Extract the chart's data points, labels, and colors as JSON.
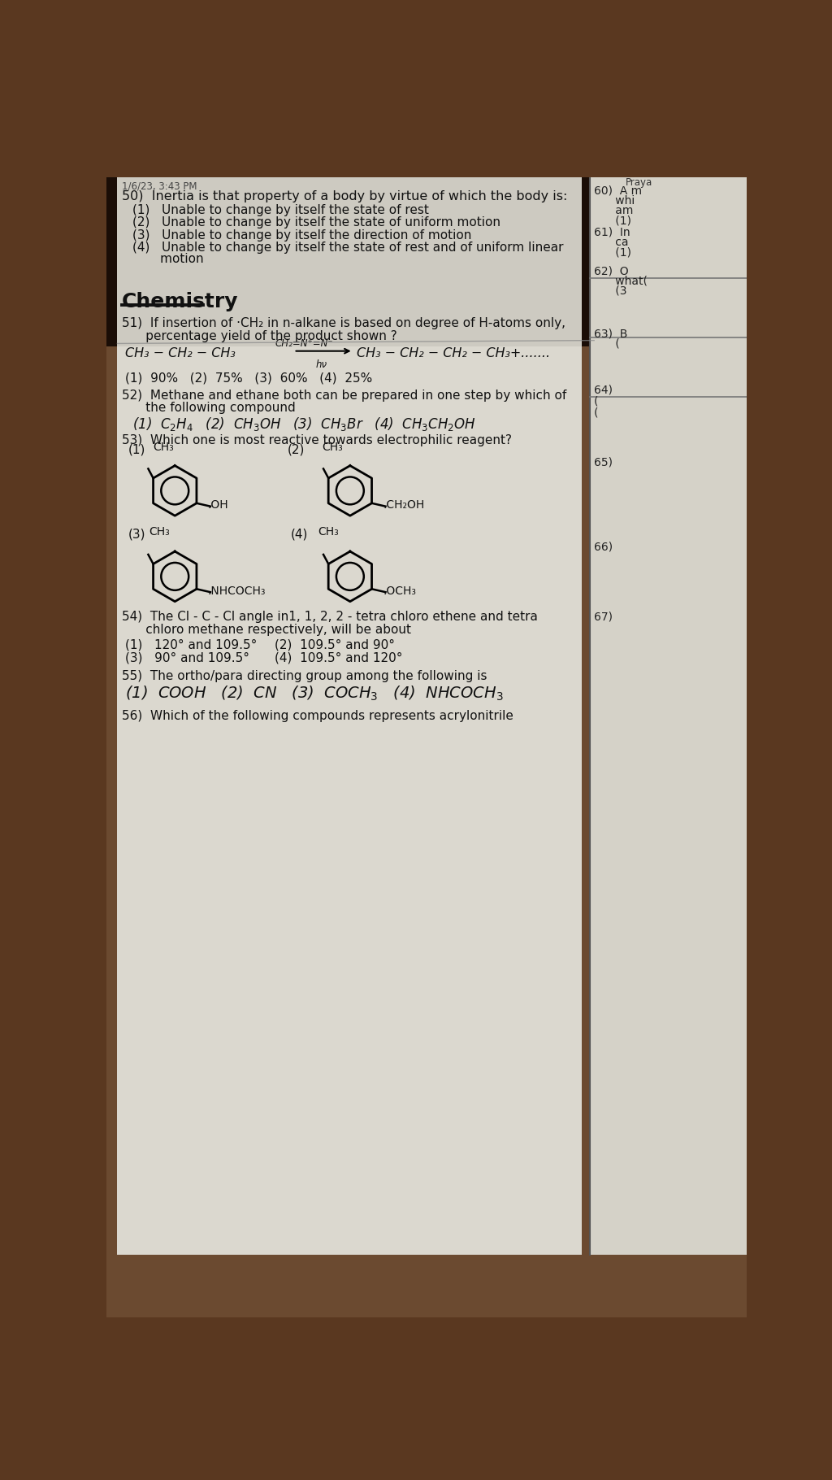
{
  "bg_top_color": "#2a1508",
  "bg_bottom_color": "#6b4c35",
  "paper_left_color": "#dbd8d0",
  "paper_right_color": "#d5d2ca",
  "text_color": "#111111",
  "divider_color": "#666666",
  "header_text": "1/6/23, 3:43 PM",
  "right_header": "Praya",
  "q50_text": "50)  Inertia is that property of a body by virtue of which the body is:",
  "q50_opts": [
    "(1)   Unable to change by itself the state of rest",
    "(2)   Unable to change by itself the state of uniform motion",
    "(3)   Unable to change by itself the direction of motion",
    "(4)   Unable to change by itself the state of rest and of uniform linear",
    "       motion"
  ],
  "chemistry_title": "Chemistry",
  "q51_line1": "51)  If insertion of ·CH₂ in n-alkane is based on degree of H-atoms only,",
  "q51_line2": "      percentage yield of the product shown ?",
  "q51_lhs": "CH₃ − CH₂ − CH₃",
  "q51_above": "CH₂=N⁺=N⁻",
  "q51_below": "hν",
  "q51_rhs": "CH₃ − CH₂ − CH₂ − CH₃+.......",
  "q51_opts": "(1)  90%   (2)  75%   (3)  60%   (4)  25%",
  "q52_line1": "52)  Methane and ethane both can be prepared in one step by which of",
  "q52_line2": "      the following compound",
  "q53_text": "53)  Which one is most reactive towards electrophilic reagent?",
  "q54_line1": "54)  The Cl - C - Cl angle in1, 1, 2, 2 - tetra chloro ethene and tetra",
  "q54_line2": "      chloro methane respectively, will be about",
  "q54_opt1": "(1)   120° and 109.5°",
  "q54_opt2": "(2)  109.5° and 90°",
  "q54_opt3": "(3)   90° and 109.5°",
  "q54_opt4": "(4)  109.5° and 120°",
  "q55_text": "55)  The ortho/para directing group among the following is",
  "q56_text": "56)  Which of the following compounds represents acrylonitrile",
  "rc60": [
    "60)  A m",
    "      whi",
    "      am",
    "      (1)"
  ],
  "rc61": [
    "61)  In",
    "      ca",
    "      (1)"
  ],
  "rc62": [
    "62)  O",
    "      what(",
    "      (3"
  ],
  "rc63": [
    "63)  B",
    "      ("
  ],
  "rc64": "64)",
  "rc65": "65)",
  "rc66": "66)",
  "rc67": "67)"
}
